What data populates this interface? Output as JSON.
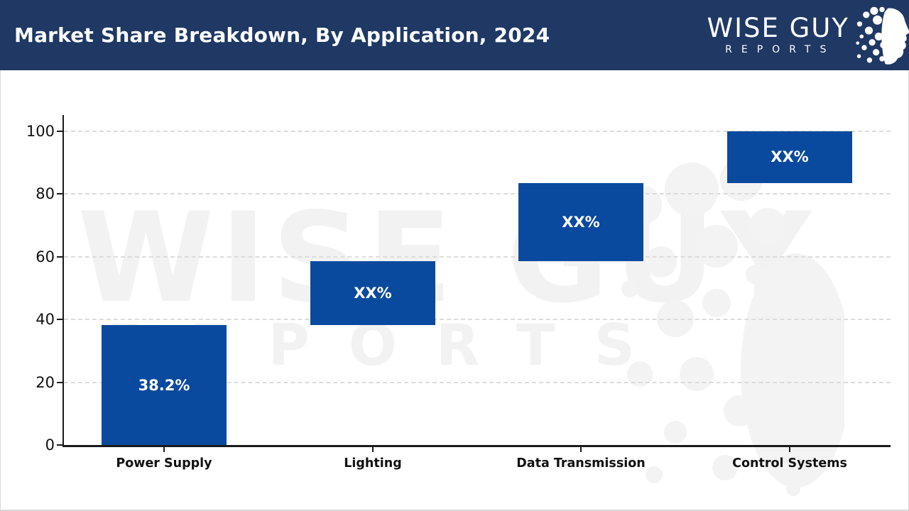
{
  "header": {
    "title": "Market Share Breakdown, By Application, 2024",
    "logo": {
      "line1": "WISE GUY",
      "line2": "REPORTS"
    }
  },
  "watermark": {
    "line1": "WISE GUY",
    "line2": "REPORTS"
  },
  "chart_data": {
    "type": "bar",
    "subtype": "waterfall",
    "title": "Market Share Breakdown, By Application, 2024",
    "xlabel": "",
    "ylabel": "",
    "ylim": [
      0,
      105
    ],
    "yticks": [
      0,
      20,
      40,
      60,
      80,
      100
    ],
    "grid": "horizontal-dashed",
    "legend": "none",
    "categories": [
      "Power Supply",
      "Lighting",
      "Data Transmission",
      "Control Systems"
    ],
    "bars": [
      {
        "category": "Power Supply",
        "start": 0,
        "end": 38.2,
        "label": "38.2%"
      },
      {
        "category": "Lighting",
        "start": 38.2,
        "end": 58.6,
        "label": "XX%"
      },
      {
        "category": "Data Transmission",
        "start": 58.6,
        "end": 83.4,
        "label": "XX%"
      },
      {
        "category": "Control Systems",
        "start": 83.5,
        "end": 100,
        "label": "XX%"
      }
    ]
  },
  "colors": {
    "header_bg": "#1f3864",
    "bar_fill": "#0a4a9e",
    "grid": "#dcdcdc",
    "axis": "#1a1a1a",
    "watermark_text": "#f2f2f2",
    "watermark_dots": "#f3f3f3"
  }
}
